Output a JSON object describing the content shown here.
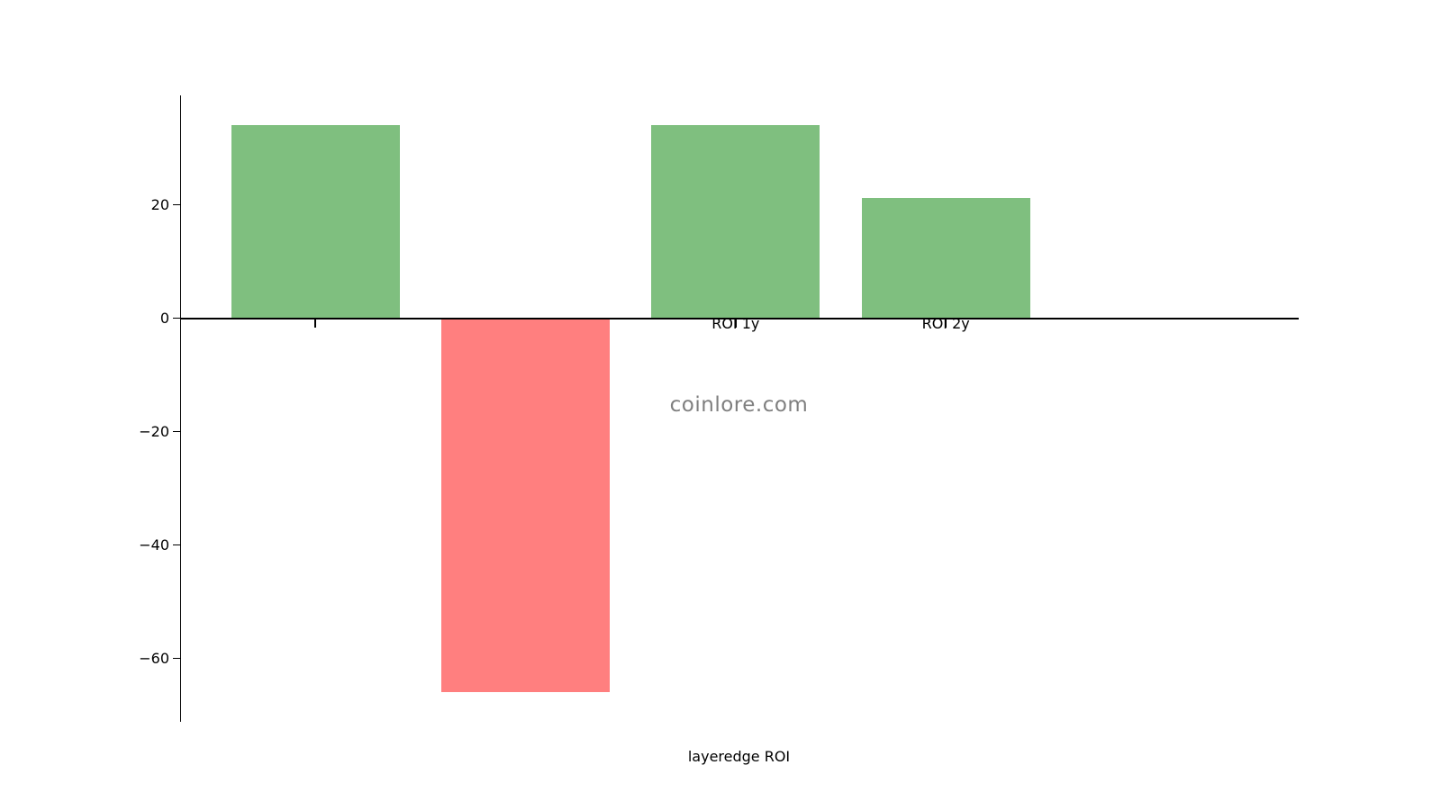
{
  "chart_data": {
    "type": "bar",
    "title": "layeredge ROI",
    "xlabel": "",
    "ylabel": "",
    "categories": [
      "",
      "",
      "ROI 1y",
      "ROI 2y"
    ],
    "values": [
      34,
      -66,
      34,
      21
    ],
    "bar_colors": [
      "#7fbf7f",
      "#ff7f7f",
      "#7fbf7f",
      "#7fbf7f"
    ],
    "positive_color": "#7fbf7f",
    "negative_color": "#ff7f7f",
    "axis_color": "#000000",
    "ylim": [
      -71,
      39
    ],
    "yticks": [
      {
        "value": 20,
        "label": "20"
      },
      {
        "value": 0,
        "label": "0"
      },
      {
        "value": -20,
        "label": "−20"
      },
      {
        "value": -40,
        "label": "−40"
      },
      {
        "value": -60,
        "label": "−60"
      }
    ],
    "grid": false,
    "legend": false
  },
  "watermark": {
    "text": "coinlore.com",
    "color": "#7f7f7f"
  }
}
